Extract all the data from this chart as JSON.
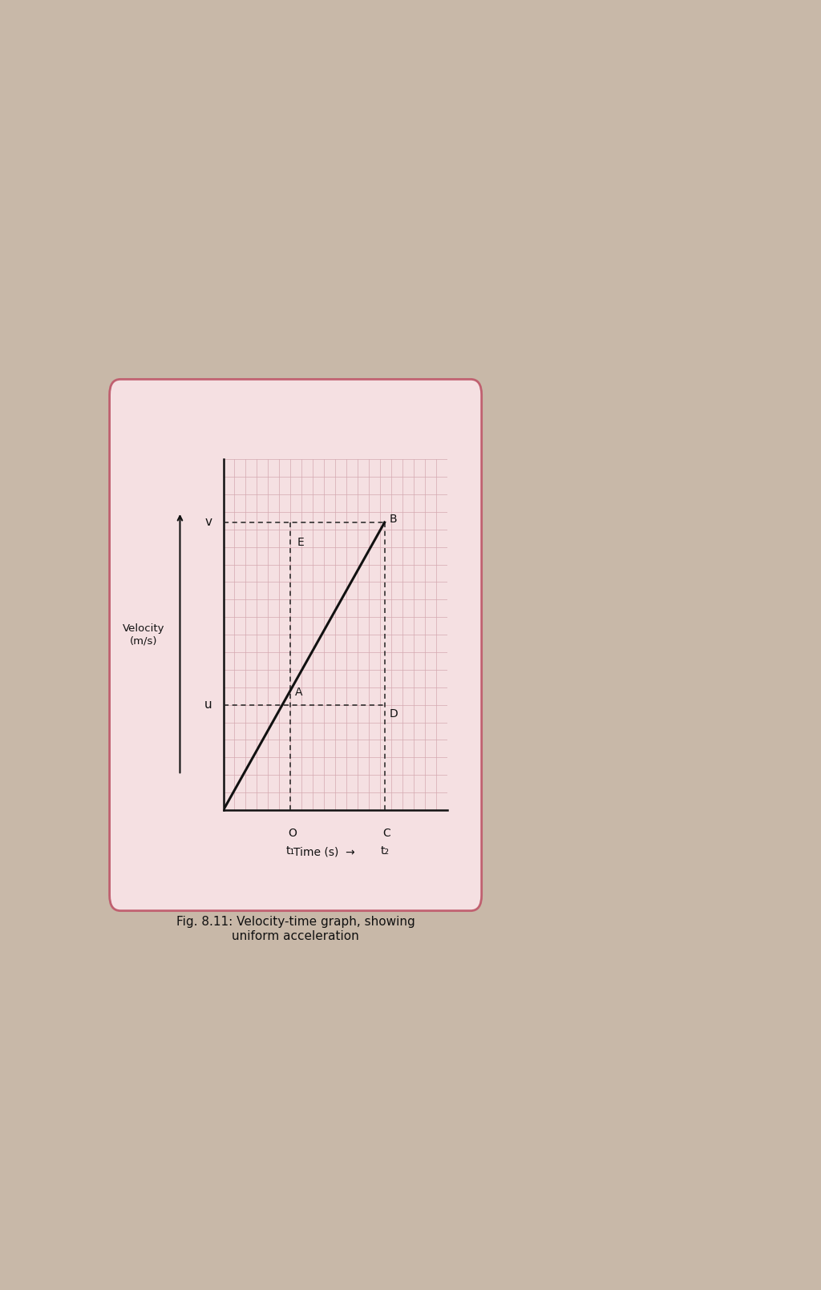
{
  "bg_color_page": "#c8b8a8",
  "bg_color_box": "#f5e0e2",
  "box_edge_color": "#c06070",
  "grid_color": "#d4a8b0",
  "line_color": "#111111",
  "dashed_color": "#222222",
  "caption_color": "#111111",
  "u_val": 0.3,
  "v_val": 0.82,
  "t1_val": 0.3,
  "t2_val": 0.72,
  "label_u": "u",
  "label_v": "v",
  "label_t1": "t₁",
  "label_t2": "t₂",
  "xlim": [
    0.0,
    1.0
  ],
  "ylim": [
    0.0,
    1.0
  ],
  "caption_line1": "Fig. 8.11: Velocity-time graph, showing",
  "caption_line2": "uniform acceleration",
  "xlabel": "Time (s)",
  "ylabel_line1": "Velocity",
  "ylabel_line2": "(m/s)"
}
